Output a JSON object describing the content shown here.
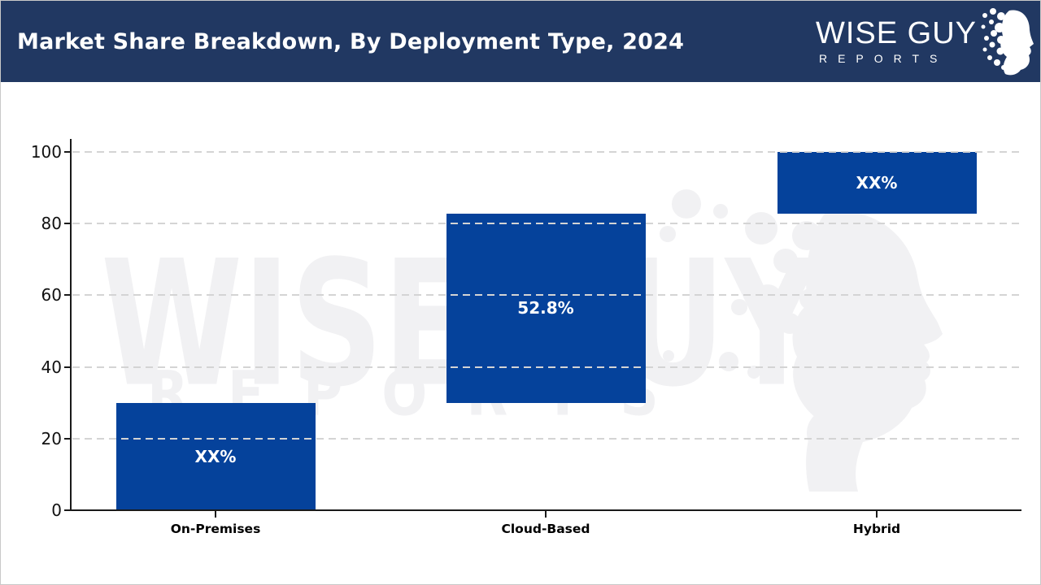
{
  "header": {
    "title": "Market Share Breakdown, By Deployment Type, 2024",
    "logo": {
      "line1": "WISE GUY",
      "line2": "REPORTS"
    }
  },
  "watermark": {
    "line1": "WISE GUY",
    "line2": "REPORTS"
  },
  "chart_data": {
    "type": "bar",
    "subtype": "waterfall",
    "title": "Market Share Breakdown, By Deployment Type, 2024",
    "categories": [
      "On-Premises",
      "Cloud-Based",
      "Hybrid"
    ],
    "segments": [
      {
        "category": "On-Premises",
        "start": 0,
        "end": 30,
        "label": "XX%"
      },
      {
        "category": "Cloud-Based",
        "start": 30,
        "end": 82.8,
        "label": "52.8%"
      },
      {
        "category": "Hybrid",
        "start": 82.8,
        "end": 100,
        "label": "XX%"
      }
    ],
    "xlabel": "",
    "ylabel": "",
    "yticks": [
      0,
      20,
      40,
      60,
      80,
      100
    ],
    "ylim": [
      0,
      103
    ],
    "grid": "horizontal-dashed",
    "legend": "none",
    "bar_color": "#05429B",
    "bar_label_color": "#ffffff"
  },
  "colors": {
    "header_bg": "#213862",
    "axis": "#1a1a1a",
    "gridline": "#d4d4d4",
    "watermark": "#f1f1f3",
    "page_border": "#c9c9c9"
  }
}
